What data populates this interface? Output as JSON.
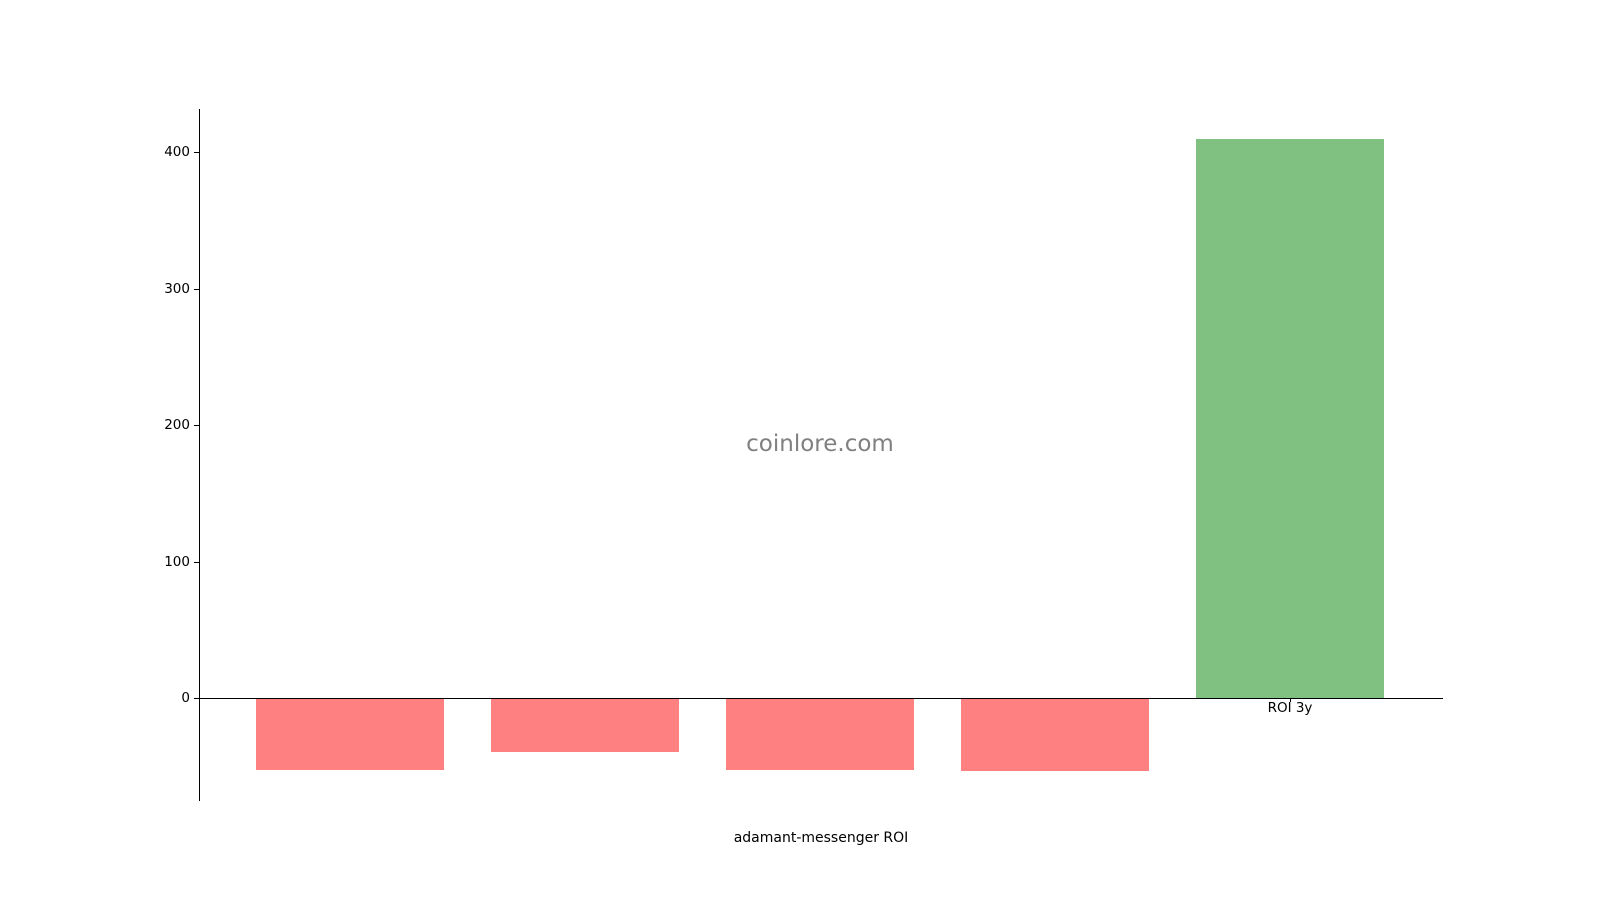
{
  "watermark": "coinlore.com",
  "colors": {
    "positive_bar": "#80c080",
    "negative_bar": "#ff8080",
    "axis": "#000000",
    "watermark_text": "#808080",
    "tick_text": "#000000"
  },
  "chart_data": {
    "type": "bar",
    "categories": [
      "",
      "",
      "",
      "",
      "ROI 3y"
    ],
    "values": [
      -52.7,
      -39.9,
      -52.7,
      -53.2,
      409.9
    ],
    "bar_colors": [
      "#ff8080",
      "#ff8080",
      "#ff8080",
      "#ff8080",
      "#80c080"
    ],
    "title": "",
    "xlabel": "adamant-messenger ROI",
    "ylabel": "",
    "ylim": [
      -75.5,
      431.7
    ],
    "yticks": [
      0,
      100,
      200,
      300,
      400
    ],
    "grid": false,
    "legend": false
  }
}
